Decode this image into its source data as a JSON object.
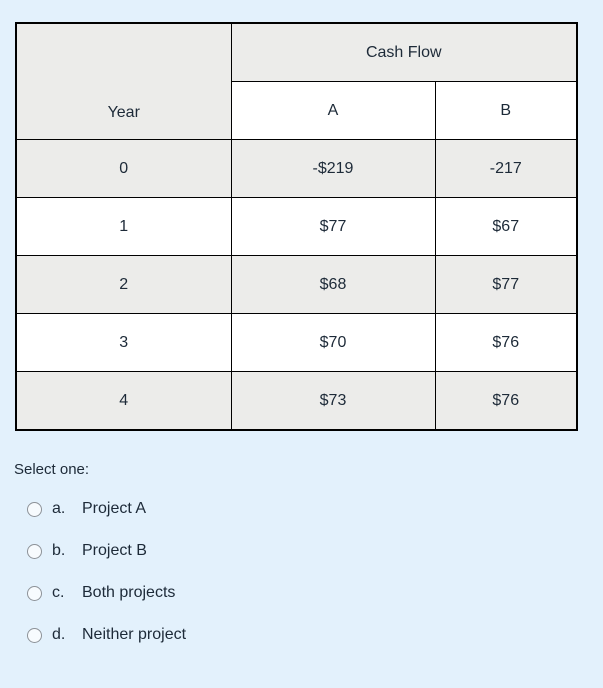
{
  "colors": {
    "page_background": "#e3f1fc",
    "cell_gray": "#ececea",
    "cell_white": "#ffffff",
    "table_border": "#000000",
    "text": "#1d2a38",
    "radio_border": "#8d9298"
  },
  "table": {
    "header": {
      "year_label": "Year",
      "cash_flow_label": "Cash Flow",
      "col_a_label": "A",
      "col_b_label": "B"
    },
    "rows": [
      {
        "year": "0",
        "a": "-$219",
        "b": "-217"
      },
      {
        "year": "1",
        "a": "$77",
        "b": "$67"
      },
      {
        "year": "2",
        "a": "$68",
        "b": "$77"
      },
      {
        "year": "3",
        "a": "$70",
        "b": "$76"
      },
      {
        "year": "4",
        "a": "$73",
        "b": "$76"
      }
    ]
  },
  "question": {
    "prompt": "Select one:",
    "options": [
      {
        "letter": "a.",
        "label": "Project A"
      },
      {
        "letter": "b.",
        "label": "Project B"
      },
      {
        "letter": "c.",
        "label": "Both projects"
      },
      {
        "letter": "d.",
        "label": "Neither project"
      }
    ]
  }
}
